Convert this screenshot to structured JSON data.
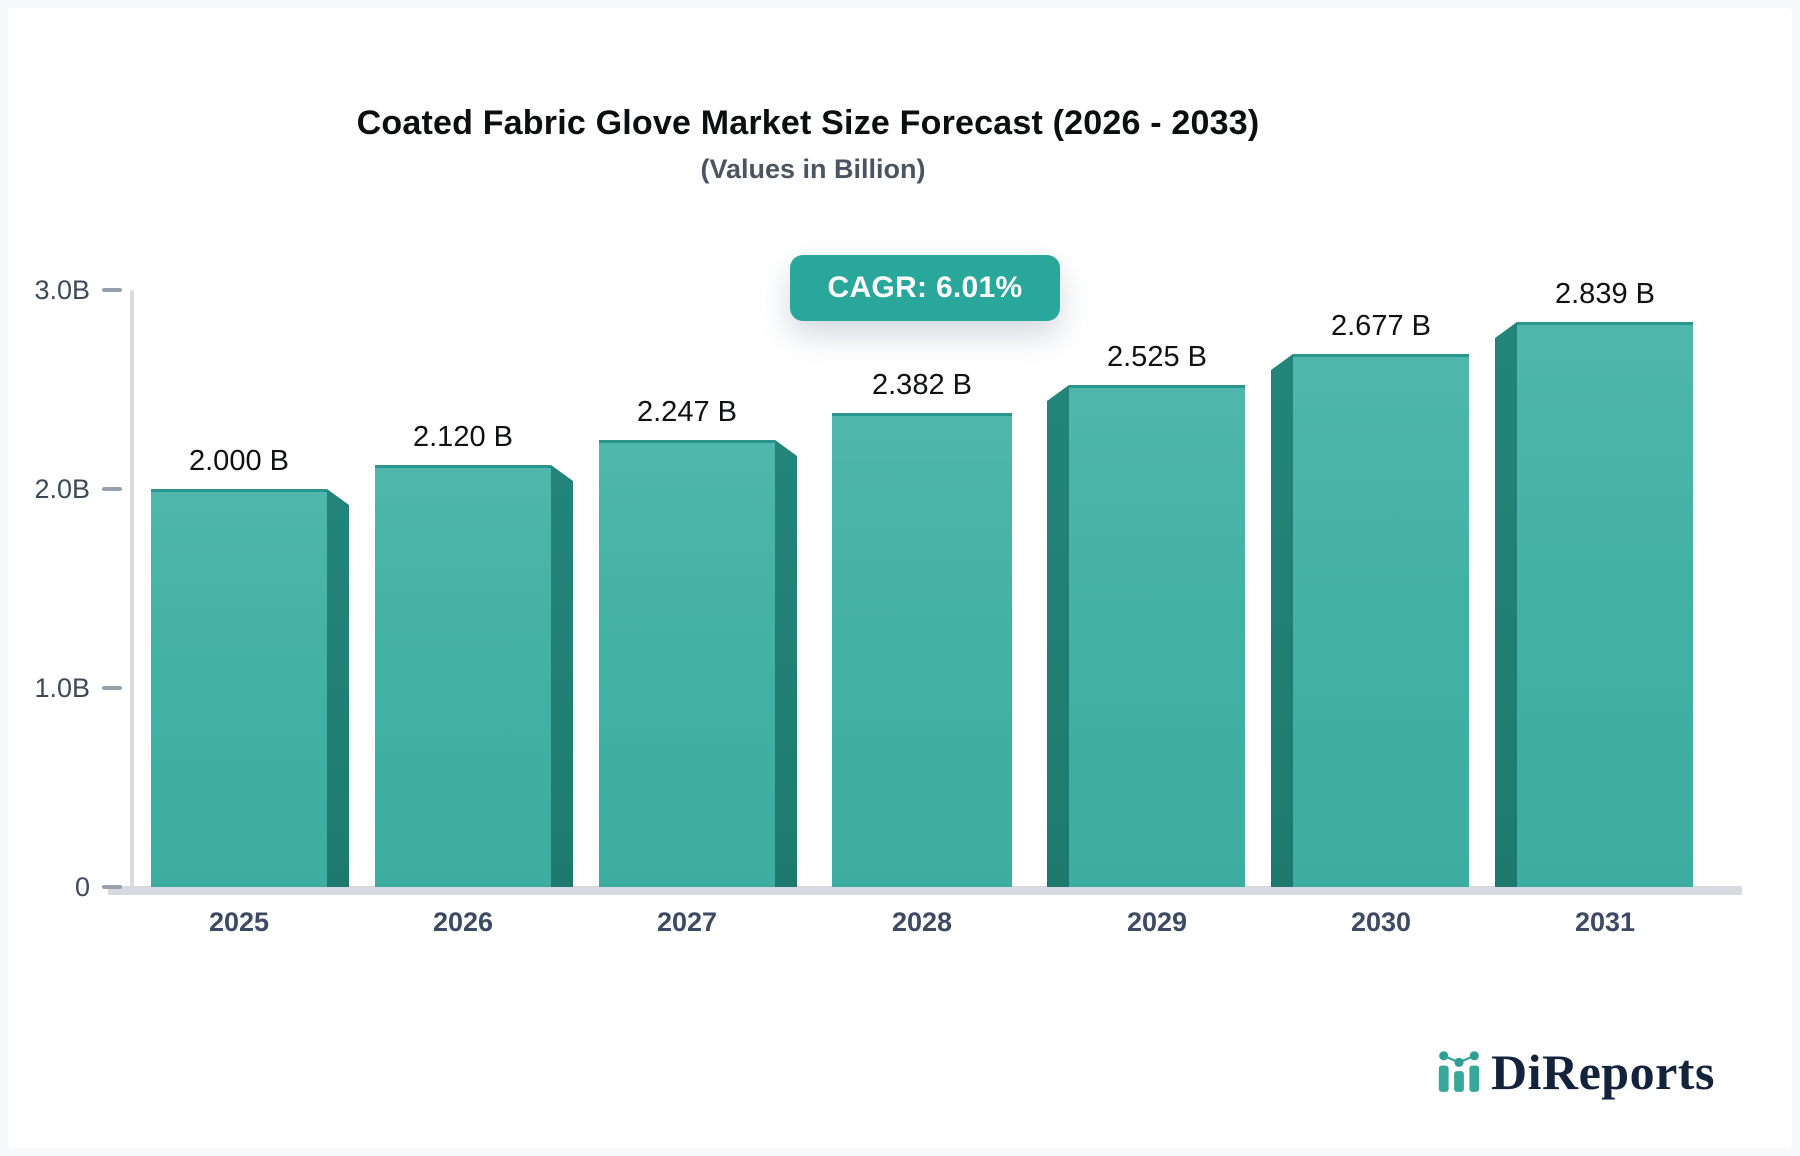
{
  "page": {
    "background": "#f7f9fb",
    "card_background": "#ffffff"
  },
  "header": {
    "title": "Coated Fabric Glove Market Size Forecast (2026 - 2033)",
    "subtitle": "(Values in Billion)",
    "cagr_badge": "CAGR: 6.01%"
  },
  "chart_data": {
    "type": "bar",
    "title": "Coated Fabric Glove Market Size Forecast (2026 - 2033)",
    "subtitle": "(Values in Billion)",
    "categories": [
      "2025",
      "2026",
      "2027",
      "2028",
      "2029",
      "2030",
      "2031"
    ],
    "values": [
      2.0,
      2.12,
      2.247,
      2.382,
      2.525,
      2.677,
      2.839
    ],
    "value_labels": [
      "2.000 B",
      "2.120 B",
      "2.247 B",
      "2.382 B",
      "2.525 B",
      "2.677 B",
      "2.839 B"
    ],
    "unit": "Billion",
    "cagr": "6.01%",
    "y_ticks": [
      {
        "label": "3.0B",
        "value": 3.0
      },
      {
        "label": "2.0B",
        "value": 2.0
      },
      {
        "label": "1.0B",
        "value": 1.0
      },
      {
        "label": "0",
        "value": 0.0
      }
    ],
    "ylim": [
      0,
      3.0
    ],
    "xlabel": "",
    "ylabel": "",
    "grid": false,
    "legend": null,
    "bar_color_front": "#45b1a5",
    "bar_color_side": "#1e7a6e",
    "bar_top_line_color": "#2a968b"
  },
  "footer": {
    "brand": "DiReports",
    "logo_icon": "mini-bar-line-chart-icon",
    "brand_color": "#14233c",
    "icon_color": "#2f9e93"
  }
}
